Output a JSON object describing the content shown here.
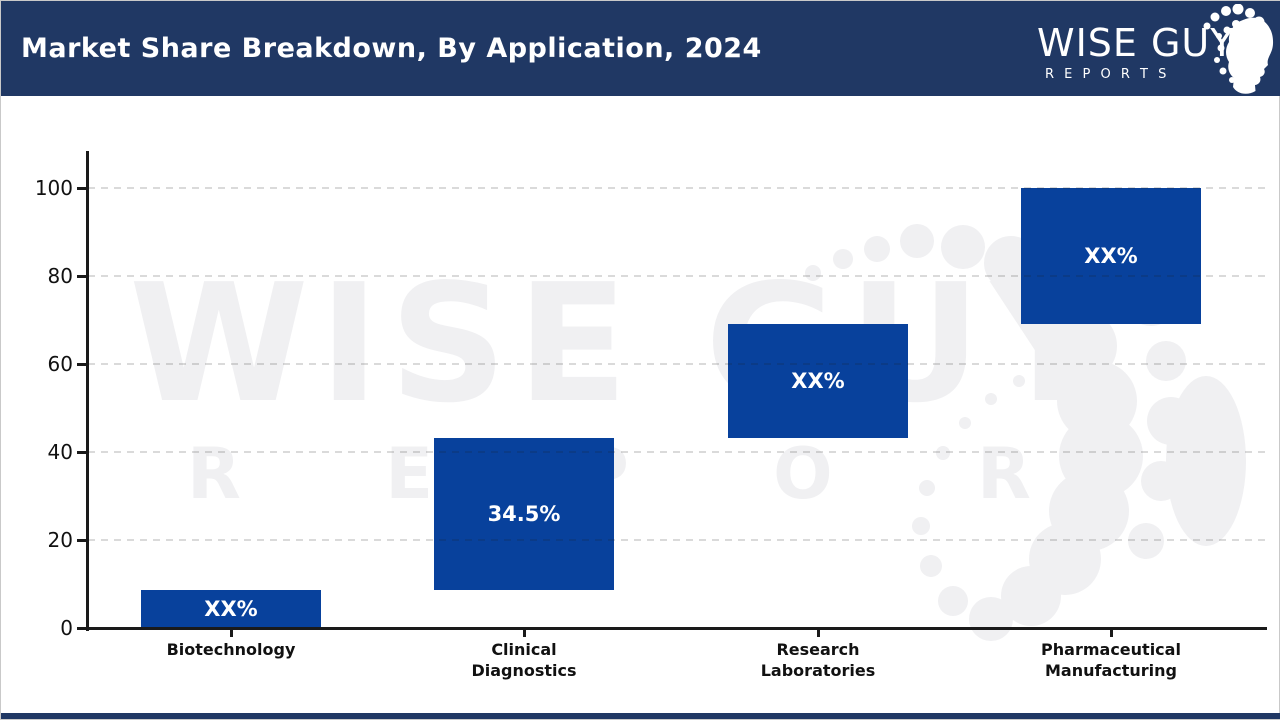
{
  "header": {
    "title": "Market Share Breakdown, By Application, 2024",
    "background_color": "#203864",
    "logo": {
      "line1": "WISE GUY",
      "line2": "R E P O R T S"
    }
  },
  "watermark": {
    "line1": "WISE GUY",
    "line2": "R E P O R T S"
  },
  "chart_data": {
    "type": "bar",
    "subtype": "waterfall",
    "title": "Market Share Breakdown, By Application, 2024",
    "xlabel": "",
    "ylabel": "",
    "ylim": [
      0,
      105
    ],
    "yticks": [
      0,
      20,
      40,
      60,
      80,
      100
    ],
    "grid": "horizontal-dashed",
    "legend": "none",
    "bar_color": "#08419c",
    "bar_label_color": "#ffffff",
    "categories": [
      "Biotechnology",
      "Clinical Diagnostics",
      "Research Laboratories",
      "Pharmaceutical Manufacturing"
    ],
    "category_lines": [
      [
        "Biotechnology"
      ],
      [
        "Clinical",
        "Diagnostics"
      ],
      [
        "Research",
        "Laboratories"
      ],
      [
        "Pharmaceutical",
        "Manufacturing"
      ]
    ],
    "bars": [
      {
        "category": "Biotechnology",
        "base": 0,
        "top": 8.6,
        "size": 8.6,
        "label": "XX%"
      },
      {
        "category": "Clinical Diagnostics",
        "base": 8.6,
        "top": 43.1,
        "size": 34.5,
        "label": "34.5%"
      },
      {
        "category": "Research Laboratories",
        "base": 43.1,
        "top": 69.1,
        "size": 26.0,
        "label": "XX%"
      },
      {
        "category": "Pharmaceutical Manufacturing",
        "base": 69.1,
        "top": 100,
        "size": 30.9,
        "label": "XX%"
      }
    ]
  }
}
